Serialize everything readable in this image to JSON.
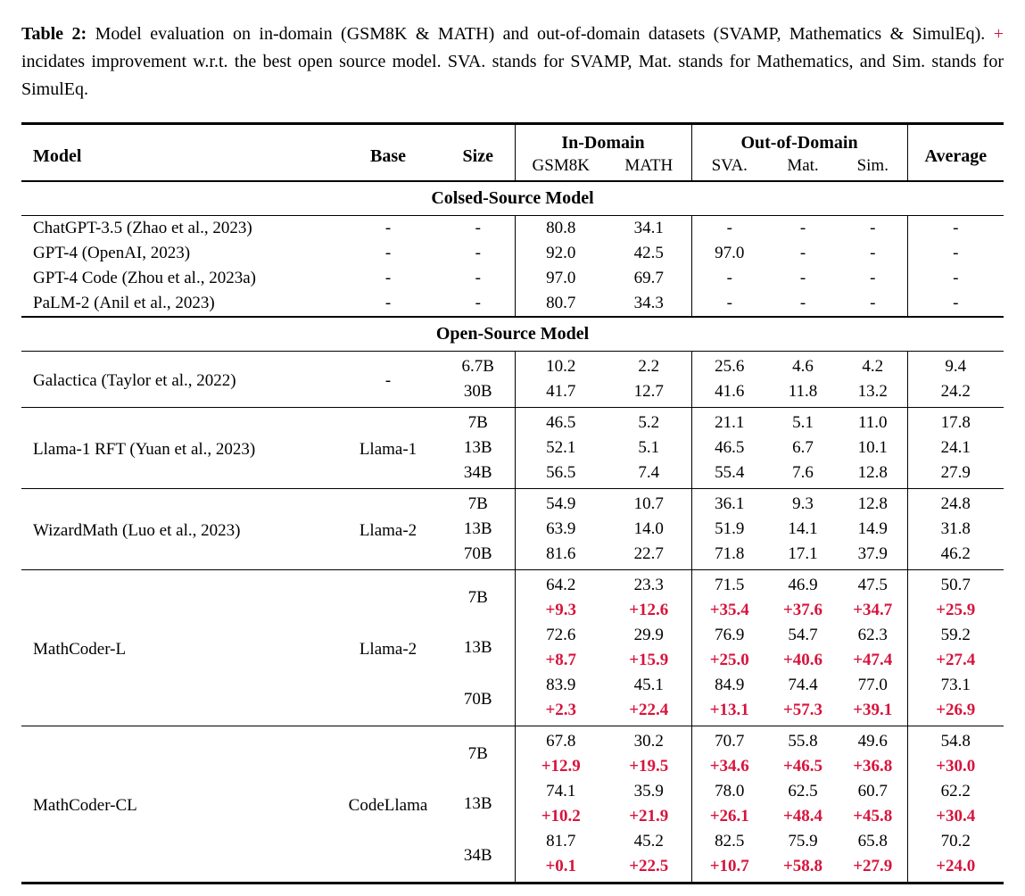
{
  "colors": {
    "accent_red": "#d7143c",
    "text": "#000000"
  },
  "caption": {
    "label": "Table 2:",
    "text_before_plus": "  Model evaluation on in-domain (GSM8K & MATH) and out-of-domain datasets (SVAMP, Mathematics & SimulEq). ",
    "plus_sign": "+",
    "text_after_plus": " incidates improvement w.r.t. the best open source model. SVA. stands for SVAMP, Mat. stands for Mathematics, and Sim. stands for SimulEq."
  },
  "table": {
    "column_headers": {
      "model": "Model",
      "base": "Base",
      "size": "Size",
      "in_domain": "In-Domain",
      "out_of_domain": "Out-of-Domain",
      "gsm8k": "GSM8K",
      "math": "MATH",
      "sva": "SVA.",
      "mat": "Mat.",
      "sim": "Sim.",
      "average": "Average"
    },
    "sections": [
      {
        "title": "Colsed-Source Model",
        "groups": [
          {
            "model": "ChatGPT-3.5 (Zhao et al., 2023)",
            "base": "-",
            "rows": [
              {
                "size": "-",
                "values": [
                  "80.8",
                  "34.1",
                  "-",
                  "-",
                  "-",
                  "-"
                ]
              }
            ]
          },
          {
            "model": "GPT-4 (OpenAI, 2023)",
            "base": "-",
            "rows": [
              {
                "size": "-",
                "values": [
                  "92.0",
                  "42.5",
                  "97.0",
                  "-",
                  "-",
                  "-"
                ]
              }
            ]
          },
          {
            "model": "GPT-4 Code (Zhou et al., 2023a)",
            "base": "-",
            "rows": [
              {
                "size": "-",
                "values": [
                  "97.0",
                  "69.7",
                  "-",
                  "-",
                  "-",
                  "-"
                ]
              }
            ]
          },
          {
            "model": "PaLM-2 (Anil et al., 2023)",
            "base": "-",
            "rows": [
              {
                "size": "-",
                "values": [
                  "80.7",
                  "34.3",
                  "-",
                  "-",
                  "-",
                  "-"
                ]
              }
            ]
          }
        ]
      },
      {
        "title": "Open-Source Model",
        "groups": [
          {
            "model": "Galactica (Taylor et al., 2022)",
            "base": "-",
            "rows": [
              {
                "size": "6.7B",
                "values": [
                  "10.2",
                  "2.2",
                  "25.6",
                  "4.6",
                  "4.2",
                  "9.4"
                ]
              },
              {
                "size": "30B",
                "values": [
                  "41.7",
                  "12.7",
                  "41.6",
                  "11.8",
                  "13.2",
                  "24.2"
                ]
              }
            ]
          },
          {
            "model": "Llama-1 RFT (Yuan et al., 2023)",
            "base": "Llama-1",
            "rows": [
              {
                "size": "7B",
                "values": [
                  "46.5",
                  "5.2",
                  "21.1",
                  "5.1",
                  "11.0",
                  "17.8"
                ]
              },
              {
                "size": "13B",
                "values": [
                  "52.1",
                  "5.1",
                  "46.5",
                  "6.7",
                  "10.1",
                  "24.1"
                ]
              },
              {
                "size": "34B",
                "values": [
                  "56.5",
                  "7.4",
                  "55.4",
                  "7.6",
                  "12.8",
                  "27.9"
                ]
              }
            ]
          },
          {
            "model": "WizardMath (Luo et al., 2023)",
            "base": "Llama-2",
            "rows": [
              {
                "size": "7B",
                "values": [
                  "54.9",
                  "10.7",
                  "36.1",
                  "9.3",
                  "12.8",
                  "24.8"
                ]
              },
              {
                "size": "13B",
                "values": [
                  "63.9",
                  "14.0",
                  "51.9",
                  "14.1",
                  "14.9",
                  "31.8"
                ]
              },
              {
                "size": "70B",
                "values": [
                  "81.6",
                  "22.7",
                  "71.8",
                  "17.1",
                  "37.9",
                  "46.2"
                ]
              }
            ]
          },
          {
            "model": "MathCoder-L",
            "base": "Llama-2",
            "rows": [
              {
                "size": "7B",
                "values": [
                  "64.2",
                  "23.3",
                  "71.5",
                  "46.9",
                  "47.5",
                  "50.7"
                ],
                "deltas": [
                  "+9.3",
                  "+12.6",
                  "+35.4",
                  "+37.6",
                  "+34.7",
                  "+25.9"
                ]
              },
              {
                "size": "13B",
                "values": [
                  "72.6",
                  "29.9",
                  "76.9",
                  "54.7",
                  "62.3",
                  "59.2"
                ],
                "deltas": [
                  "+8.7",
                  "+15.9",
                  "+25.0",
                  "+40.6",
                  "+47.4",
                  "+27.4"
                ]
              },
              {
                "size": "70B",
                "values": [
                  "83.9",
                  "45.1",
                  "84.9",
                  "74.4",
                  "77.0",
                  "73.1"
                ],
                "deltas": [
                  "+2.3",
                  "+22.4",
                  "+13.1",
                  "+57.3",
                  "+39.1",
                  "+26.9"
                ]
              }
            ]
          },
          {
            "model": "MathCoder-CL",
            "base": "CodeLlama",
            "rows": [
              {
                "size": "7B",
                "values": [
                  "67.8",
                  "30.2",
                  "70.7",
                  "55.8",
                  "49.6",
                  "54.8"
                ],
                "deltas": [
                  "+12.9",
                  "+19.5",
                  "+34.6",
                  "+46.5",
                  "+36.8",
                  "+30.0"
                ]
              },
              {
                "size": "13B",
                "values": [
                  "74.1",
                  "35.9",
                  "78.0",
                  "62.5",
                  "60.7",
                  "62.2"
                ],
                "deltas": [
                  "+10.2",
                  "+21.9",
                  "+26.1",
                  "+48.4",
                  "+45.8",
                  "+30.4"
                ]
              },
              {
                "size": "34B",
                "values": [
                  "81.7",
                  "45.2",
                  "82.5",
                  "75.9",
                  "65.8",
                  "70.2"
                ],
                "deltas": [
                  "+0.1",
                  "+22.5",
                  "+10.7",
                  "+58.8",
                  "+27.9",
                  "+24.0"
                ]
              }
            ]
          }
        ]
      }
    ]
  }
}
